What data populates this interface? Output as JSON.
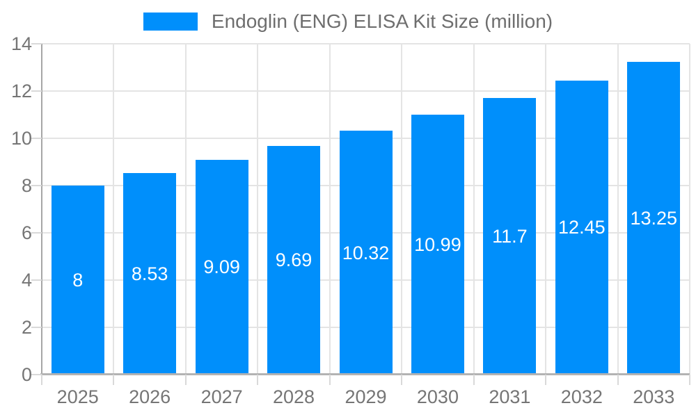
{
  "chart_data": {
    "type": "bar",
    "title": "Endoglin (ENG) ELISA Kit Size (million)",
    "categories": [
      "2025",
      "2026",
      "2027",
      "2028",
      "2029",
      "2030",
      "2031",
      "2032",
      "2033"
    ],
    "series": [
      {
        "name": "Endoglin (ENG) ELISA Kit Size (million)",
        "values": [
          8,
          8.53,
          9.09,
          9.69,
          10.32,
          10.99,
          11.7,
          12.45,
          13.25
        ]
      }
    ],
    "bar_value_labels": [
      "8",
      "8.53",
      "9.09",
      "9.69",
      "10.32",
      "10.99",
      "11.7",
      "12.45",
      "13.25"
    ],
    "xlabel": "",
    "ylabel": "",
    "ylim": [
      0,
      14
    ],
    "yticks": [
      0,
      2,
      4,
      6,
      8,
      10,
      12,
      14
    ],
    "grid": true,
    "legend_position": "top-center",
    "colors": {
      "bar": "#008FFB",
      "bar_label_text": "#ffffff",
      "gridline": "#e4e4e4",
      "axis_line": "#a6a6a6",
      "baseline": "#b3b3b3",
      "tick_mark": "#d9d9d9",
      "axis_label_text": "#757575",
      "legend_text": "#6e6e6e",
      "background": "#ffffff"
    }
  }
}
